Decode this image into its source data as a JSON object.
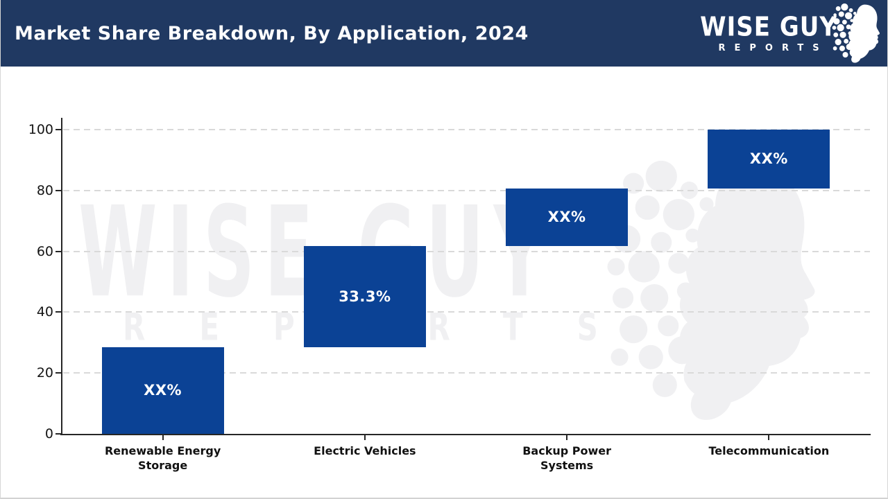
{
  "header": {
    "title": "Market Share Breakdown, By Application, 2024",
    "logo": {
      "name_top": "WISE GUY",
      "name_bottom": "REPORTS",
      "icon": "dotted-head-profile"
    }
  },
  "watermark": {
    "line1": "WISE GUY",
    "line2": "REPORTS",
    "icon": "dotted-head-profile"
  },
  "chart_data": {
    "type": "bar",
    "variant": "waterfall",
    "title": "Market Share Breakdown, By Application, 2024",
    "categories": [
      "Renewable Energy Storage",
      "Electric Vehicles",
      "Backup Power Systems",
      "Telecommunication"
    ],
    "category_label_lines": [
      [
        "Renewable Energy",
        "Storage"
      ],
      [
        "Electric Vehicles"
      ],
      [
        "Backup Power",
        "Systems"
      ],
      [
        "Telecommunication"
      ]
    ],
    "series": [
      {
        "name": "Market Share",
        "bars": [
          {
            "category": "Renewable Energy Storage",
            "start": 0,
            "end": 28.5,
            "label": "XX%"
          },
          {
            "category": "Electric Vehicles",
            "start": 28.5,
            "end": 61.8,
            "label": "33.3%"
          },
          {
            "category": "Backup Power Systems",
            "start": 61.8,
            "end": 80.7,
            "label": "XX%"
          },
          {
            "category": "Telecommunication",
            "start": 80.7,
            "end": 100,
            "label": "XX%"
          }
        ]
      }
    ],
    "xlabel": "",
    "ylabel": "",
    "ylim": [
      0,
      100
    ],
    "yticks": [
      0,
      20,
      40,
      60,
      80,
      100
    ],
    "grid": "horizontal-dashed",
    "legend": "none",
    "colors": {
      "bar": "#0b4295",
      "bar_label": "#ffffff",
      "grid": "#d9d9d9",
      "axis": "#262626",
      "tick_label": "#151515",
      "header_bg": "#203962",
      "watermark": "#f0f0f2"
    }
  }
}
